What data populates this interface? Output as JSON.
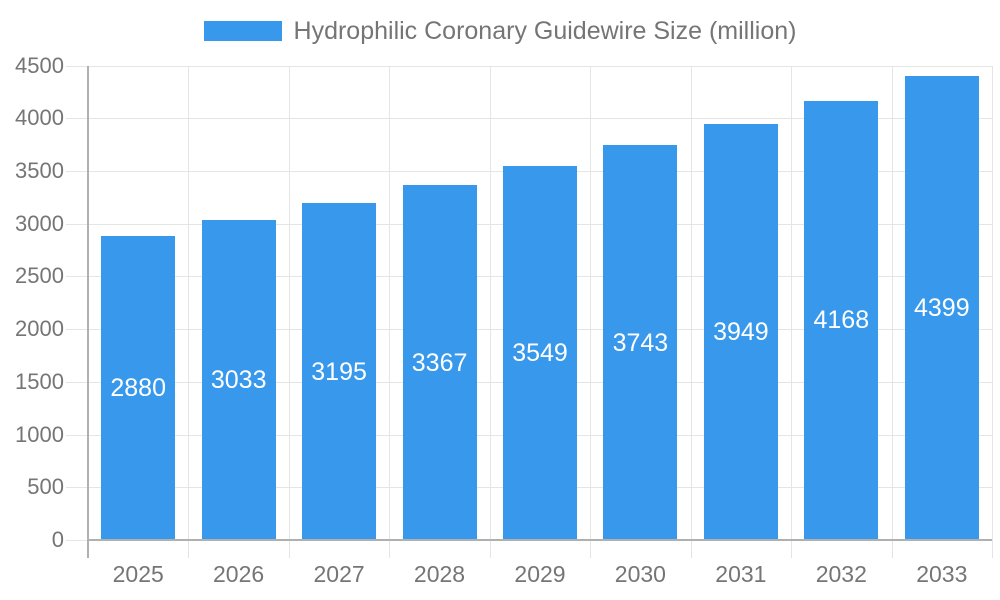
{
  "legend": {
    "label": "Hydrophilic Coronary Guidewire Size (million)"
  },
  "chart_data": {
    "type": "bar",
    "title": "Hydrophilic Coronary Guidewire Size (million)",
    "categories": [
      "2025",
      "2026",
      "2027",
      "2028",
      "2029",
      "2030",
      "2031",
      "2032",
      "2033"
    ],
    "values": [
      2880,
      3033,
      3195,
      3367,
      3549,
      3743,
      3949,
      4168,
      4399
    ],
    "series": [
      {
        "name": "Hydrophilic Coronary Guidewire Size (million)",
        "values": [
          2880,
          3033,
          3195,
          3367,
          3549,
          3743,
          3949,
          4168,
          4399
        ]
      }
    ],
    "xlabel": "",
    "ylabel": "",
    "ylim": [
      0,
      4500
    ],
    "ytick_step": 500,
    "yticks": [
      0,
      500,
      1000,
      1500,
      2000,
      2500,
      3000,
      3500,
      4000,
      4500
    ],
    "grid": true,
    "legend_position": "top",
    "value_labels": "inside-center"
  },
  "colors": {
    "bar": "#3899EC",
    "grid": "#E5E5E5",
    "axis": "#B0B0B0",
    "tick_text": "#757575",
    "bar_label_text": "#FFFFFF",
    "background": "#FFFFFF"
  }
}
